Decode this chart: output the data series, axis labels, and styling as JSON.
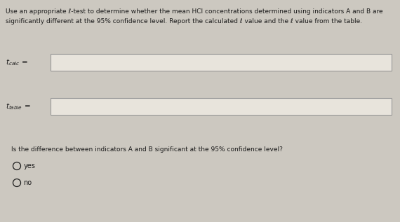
{
  "background_color": "#ccc8c0",
  "title_line1": "Use an appropriate ℓ-test to determine whether the mean HCl concentrations determined using indicators A and B are",
  "title_line2": "significantly different at the 95% confidence level. Report the calculated ℓ value and the ℓ value from the table.",
  "label_calc": "$t_{calc}$ =",
  "label_table": "$t_{table}$ =",
  "question": "Is the difference between indicators A and B significant at the 95% confidence level?",
  "option_yes": "yes",
  "option_no": "no",
  "box_facecolor": "#e8e4dc",
  "box_edgecolor": "#999999",
  "text_color": "#1a1a1a",
  "font_size_title": 6.5,
  "font_size_labels": 7.5,
  "font_size_question": 6.5,
  "font_size_options": 7.0
}
